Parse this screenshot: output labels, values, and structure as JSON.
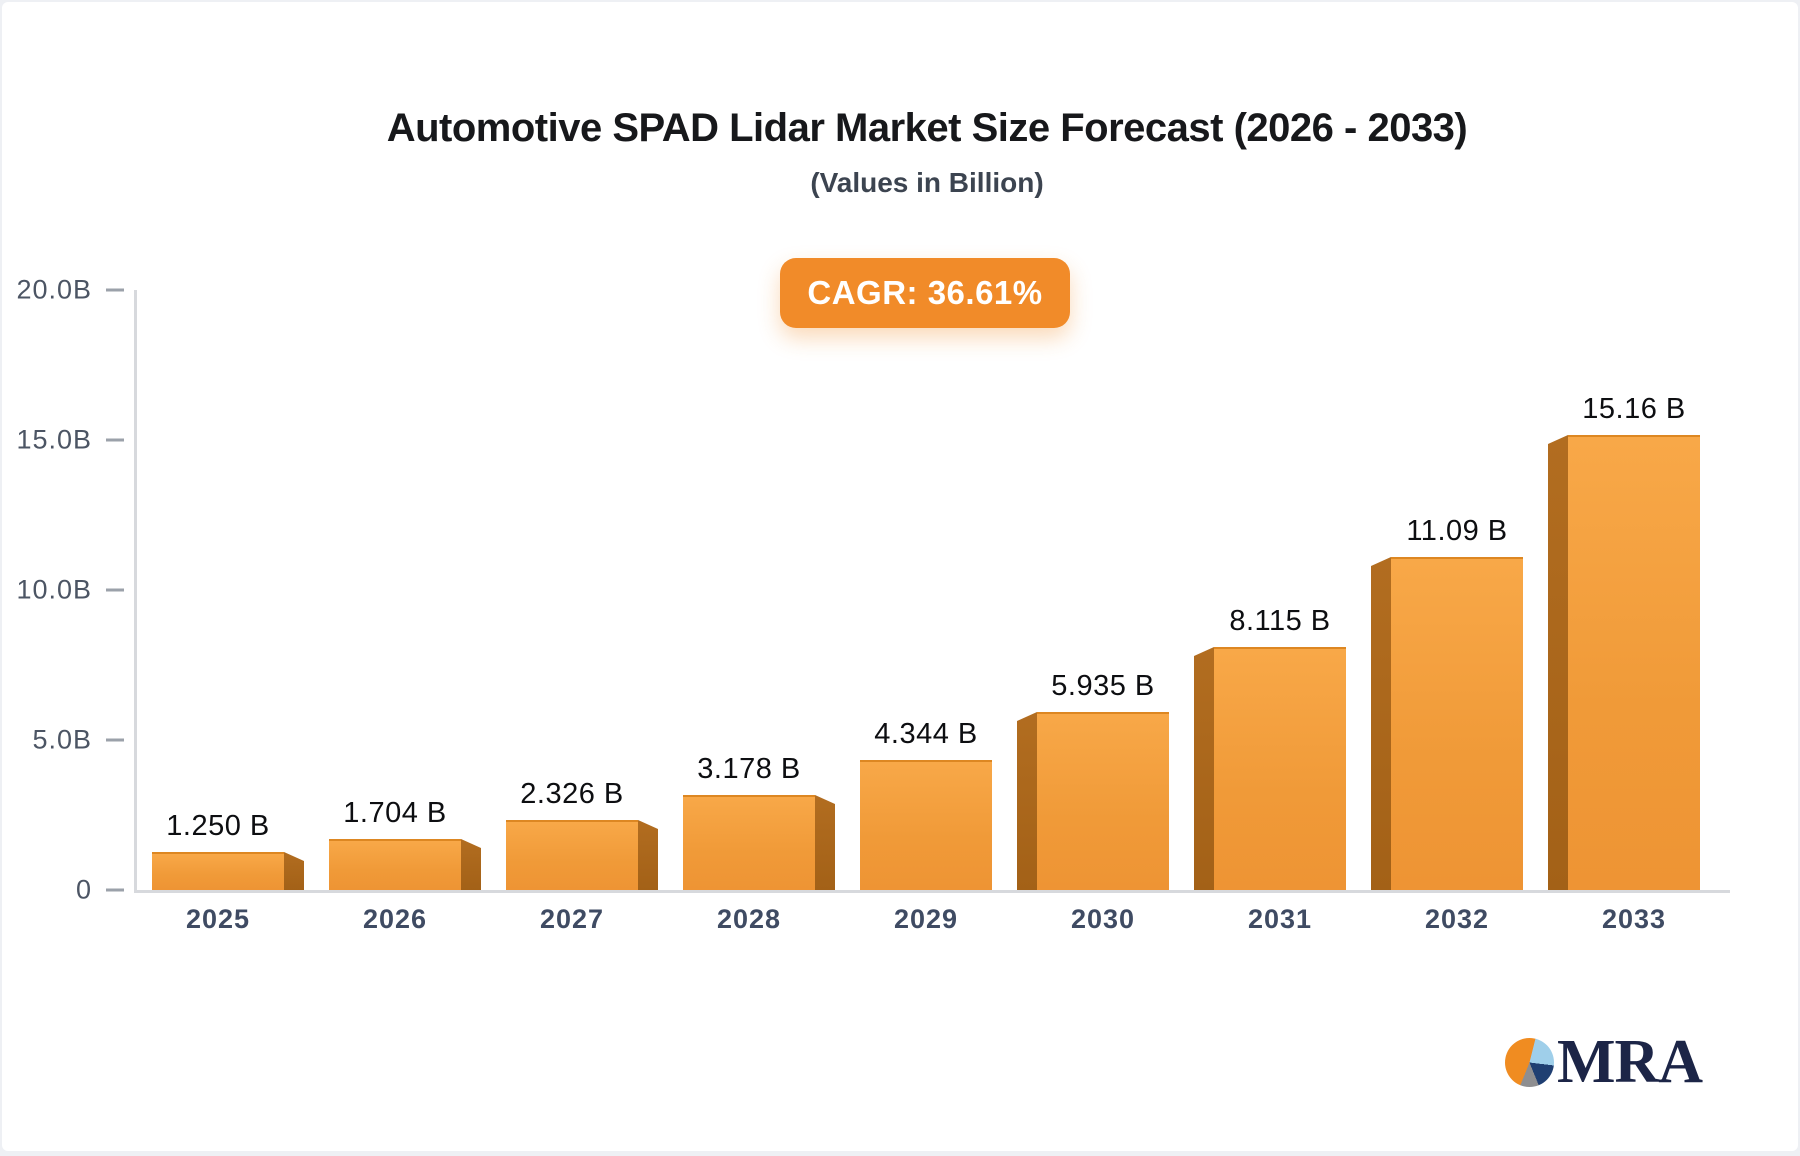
{
  "header": {
    "title": "Automotive SPAD Lidar Market Size Forecast (2026 - 2033)",
    "subtitle": "(Values in Billion)"
  },
  "badge": {
    "label": "CAGR: 36.61%",
    "background": "#f18b29",
    "text_color": "#ffffff"
  },
  "chart_data": {
    "type": "bar",
    "title": "Automotive SPAD Lidar Market Size Forecast (2026 - 2033)",
    "subtitle": "(Values in Billion)",
    "categories": [
      "2025",
      "2026",
      "2027",
      "2028",
      "2029",
      "2030",
      "2031",
      "2032",
      "2033"
    ],
    "values": [
      1.25,
      1.704,
      2.326,
      3.178,
      4.344,
      5.935,
      8.115,
      11.09,
      15.16
    ],
    "value_labels": [
      "1.250 B",
      "1.704 B",
      "2.326 B",
      "3.178 B",
      "4.344 B",
      "5.935 B",
      "8.115 B",
      "11.09 B",
      "15.16 B"
    ],
    "yticks": [
      {
        "label": "20.0B",
        "value": 20
      },
      {
        "label": "15.0B",
        "value": 15
      },
      {
        "label": "10.0B",
        "value": 10
      },
      {
        "label": "5.0B",
        "value": 5
      },
      {
        "label": "0",
        "value": 0
      }
    ],
    "ylim": [
      0,
      20
    ],
    "xlabel": "",
    "ylabel": "",
    "grid": false,
    "legend": null,
    "bar_color_top": "#f8a848",
    "bar_color_bottom": "#ee9434",
    "bar_side_color": "#a86418",
    "bar_top_edge_color": "#dd8722",
    "axis_color": "#d7d9dd",
    "tick_text_color": "#4c5564",
    "category_text_color": "#3f4b63",
    "value_text_color": "#0d0e11"
  },
  "logo": {
    "text": "MRA",
    "pie_colors": {
      "orange": "#f08c21",
      "light_blue": "#9fcfea",
      "navy": "#1f3f72",
      "gray": "#8e8e90"
    },
    "text_color": "#1c2547"
  }
}
